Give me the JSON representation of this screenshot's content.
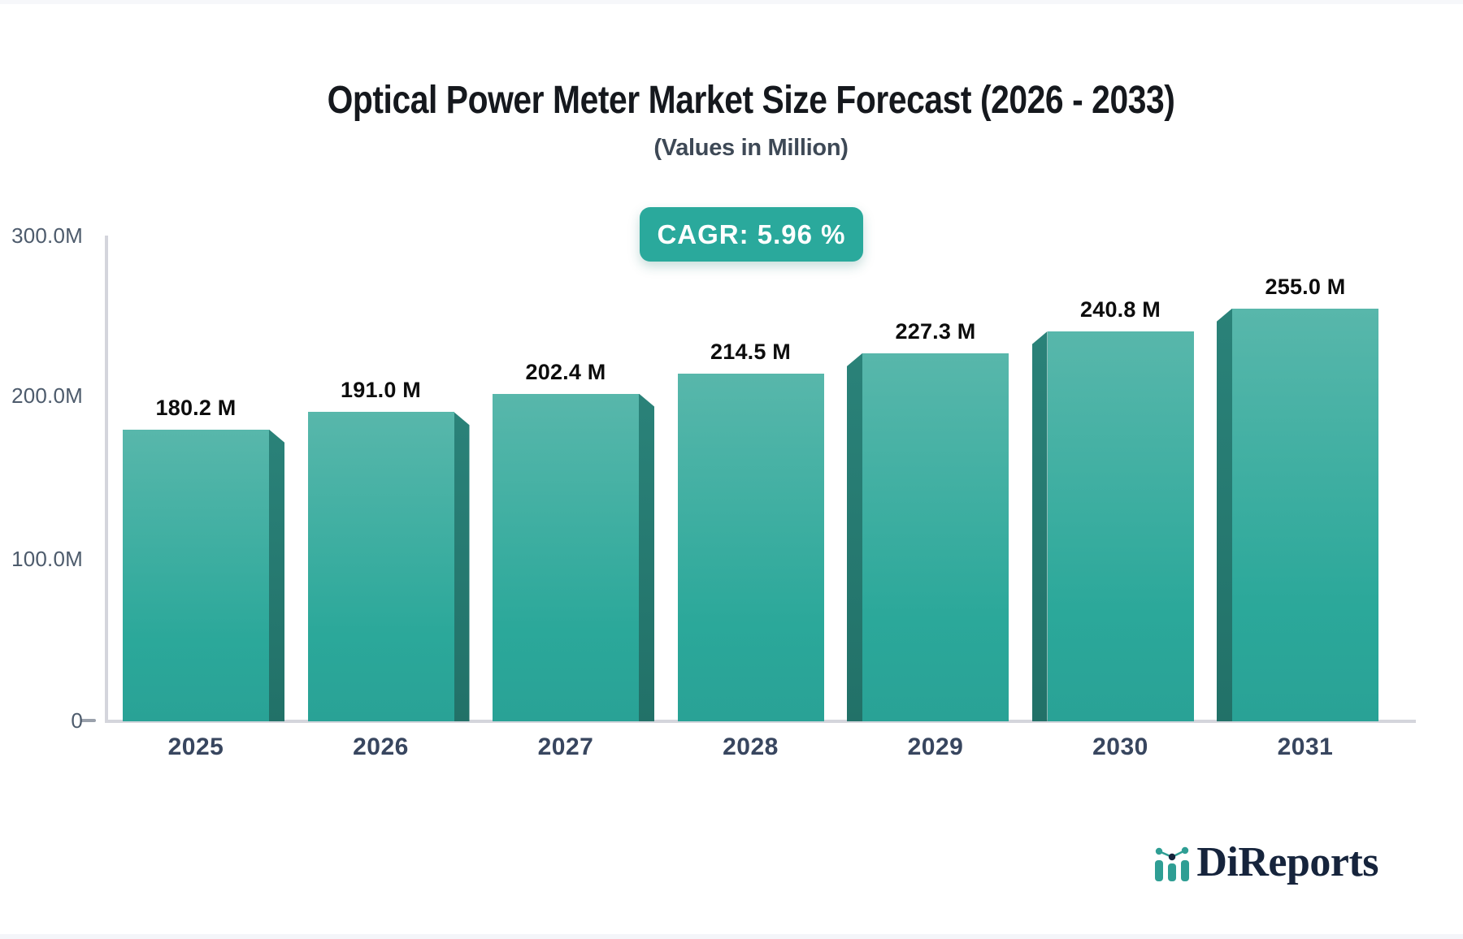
{
  "header": {
    "title": "Optical Power Meter Market Size Forecast (2026 - 2033)",
    "subtitle": "(Values in Million)",
    "cagr_badge": "CAGR: 5.96 %"
  },
  "chart_data": {
    "type": "bar",
    "title": "Optical Power Meter Market Size Forecast (2026 - 2033)",
    "subtitle": "(Values in Million)",
    "unit": "Million",
    "cagr_percent": 5.96,
    "categories": [
      "2025",
      "2026",
      "2027",
      "2028",
      "2029",
      "2030",
      "2031"
    ],
    "values": [
      180.2,
      191.0,
      202.4,
      214.5,
      227.3,
      240.8,
      255.0
    ],
    "bar_labels": [
      "180.2 M",
      "191.0 M",
      "202.4 M",
      "214.5 M",
      "227.3 M",
      "240.8 M",
      "255.0 M"
    ],
    "ytick_labels": [
      "300.0M",
      "200.0M",
      "100.0M",
      "0"
    ],
    "ylim": [
      0,
      300
    ],
    "xlabel": "",
    "ylabel": "",
    "grid": false,
    "legend": null,
    "style": "3d-extruded-bars",
    "colors": {
      "bar_top": "#58b7ab",
      "bar_bottom": "#29a296",
      "bar_side": "#26796f",
      "axis": "#d4d5dc",
      "badge_bg": "#2aa99c",
      "badge_text": "#ffffff",
      "value_label": "#0d0d0d",
      "year_label": "#38465f",
      "ytick_label": "#4d5b6c"
    }
  },
  "branding": {
    "logo_text": "DiReports",
    "logo_icon": "bar-chart-trend-icon",
    "logo_text_color": "#16243c",
    "logo_icon_color": "#2f9e94"
  }
}
